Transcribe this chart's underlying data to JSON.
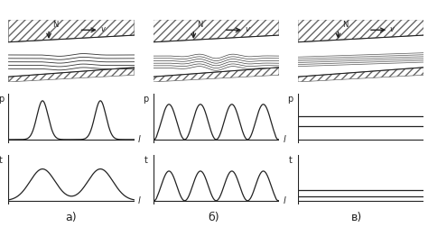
{
  "bg_color": "#ffffff",
  "line_color": "#333333",
  "col_labels": [
    "а)",
    "б)",
    "в)"
  ],
  "p_label": "p",
  "t_label": "t",
  "l_label": "l",
  "N_label": "N",
  "v_label": "v"
}
